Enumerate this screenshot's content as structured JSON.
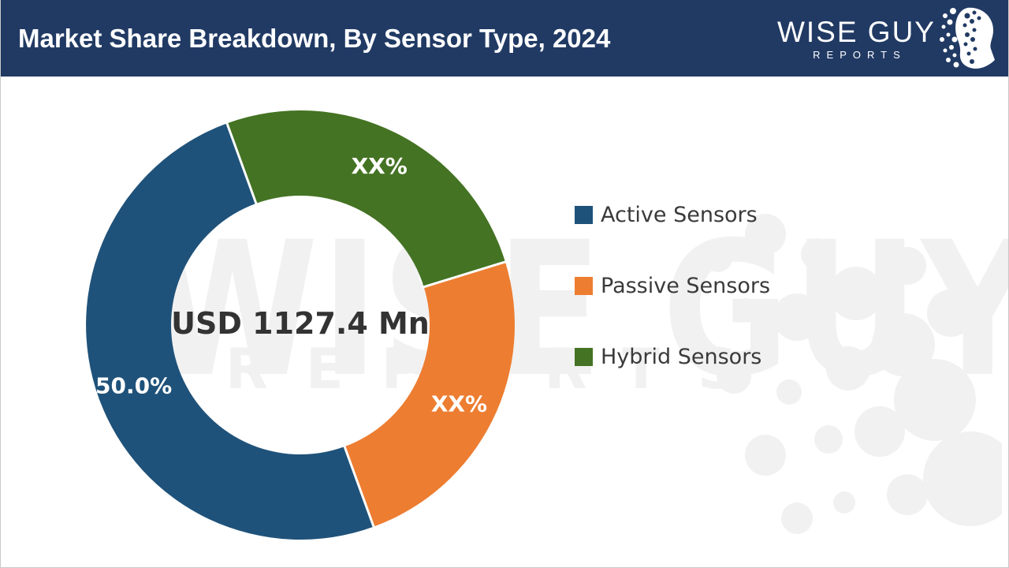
{
  "header": {
    "title": "Market Share Breakdown, By Sensor Type, 2024",
    "logo": {
      "wordmark": "WISE GUY",
      "subtext": "REPORTS"
    }
  },
  "watermark": {
    "line1": "WISE GUY",
    "line2": "REPORTS"
  },
  "chart_data": {
    "type": "pie",
    "subtype": "donut",
    "title": "Market Share Breakdown, By Sensor Type, 2024",
    "center_label": "USD 1127.4 Mn",
    "start_angle_clock_deg": -20,
    "clockwise": true,
    "legend_position": "right",
    "segments": [
      {
        "name": "Hybrid Sensors",
        "value_pct": 25.8,
        "display_label": "XX%",
        "color": "#447323"
      },
      {
        "name": "Passive Sensors",
        "value_pct": 24.2,
        "display_label": "XX%",
        "color": "#ED7D31"
      },
      {
        "name": "Active Sensors",
        "value_pct": 50.0,
        "display_label": "50.0%",
        "color": "#1F527A"
      }
    ],
    "legend": [
      {
        "label": "Active Sensors",
        "color": "#1F527A"
      },
      {
        "label": "Passive Sensors",
        "color": "#ED7D31"
      },
      {
        "label": "Hybrid Sensors",
        "color": "#447323"
      }
    ]
  },
  "colors": {
    "header_bg": "#213A64",
    "canvas_border": "#c9c9c9",
    "center_text": "#333333",
    "legend_text": "#3a3a3a",
    "watermark": "#f1f1f1",
    "label_text": "#ffffff"
  }
}
